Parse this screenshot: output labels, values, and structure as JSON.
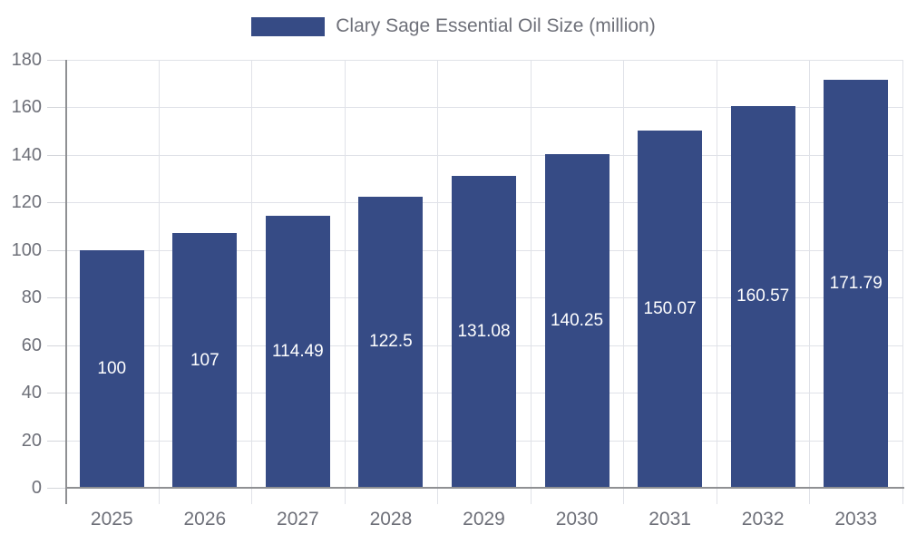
{
  "chart_data": {
    "type": "bar",
    "title": "Clary Sage Essential Oil Size (million)",
    "legend": {
      "position": "top-center",
      "entries": [
        "Clary Sage Essential Oil Size (million)"
      ]
    },
    "categories": [
      "2025",
      "2026",
      "2027",
      "2028",
      "2029",
      "2030",
      "2031",
      "2032",
      "2033"
    ],
    "values": [
      100,
      107,
      114.49,
      122.5,
      131.08,
      140.25,
      150.07,
      160.57,
      171.79
    ],
    "value_labels": [
      "100",
      "107",
      "114.49",
      "122.5",
      "131.08",
      "140.25",
      "150.07",
      "160.57",
      "171.79"
    ],
    "xlabel": "",
    "ylabel": "",
    "ylim": [
      0,
      180
    ],
    "yticks": [
      0,
      20,
      40,
      60,
      80,
      100,
      120,
      140,
      160,
      180
    ],
    "grid": true,
    "colors": {
      "bar": "#364B85",
      "grid": "#E0E2E8",
      "axis": "#8F9093",
      "tick": "#D4D6DB",
      "text": "#6E7079",
      "value_label": "#FFFFFF",
      "background": "#FFFFFF"
    }
  }
}
